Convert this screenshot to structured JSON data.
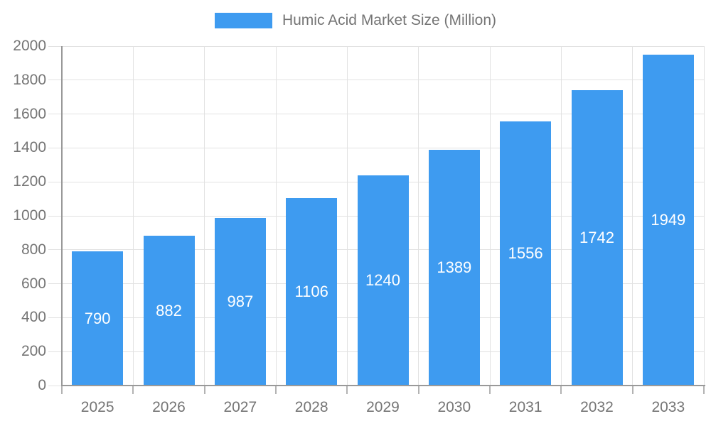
{
  "chart_data": {
    "type": "bar",
    "title": "Humic Acid Market Size (Million)",
    "categories": [
      "2025",
      "2026",
      "2027",
      "2028",
      "2029",
      "2030",
      "2031",
      "2032",
      "2033"
    ],
    "series": [
      {
        "name": "Humic Acid Market Size (Million)",
        "values": [
          790,
          882,
          987,
          1106,
          1240,
          1389,
          1556,
          1742,
          1949
        ]
      }
    ],
    "xlabel": "",
    "ylabel": "",
    "ylim": [
      0,
      2000
    ],
    "yticks": [
      0,
      200,
      400,
      600,
      800,
      1000,
      1200,
      1400,
      1600,
      1800,
      2000
    ],
    "grid": true,
    "legend_position": "top-center",
    "value_labels": "inside-center-white"
  },
  "colors": {
    "bar": "#3e9bf0",
    "text": "#757575",
    "grid": "#e2e2e2",
    "axis": "#999999",
    "tick": "#b3b3b3",
    "value_label": "#ffffff",
    "background": "#ffffff"
  }
}
